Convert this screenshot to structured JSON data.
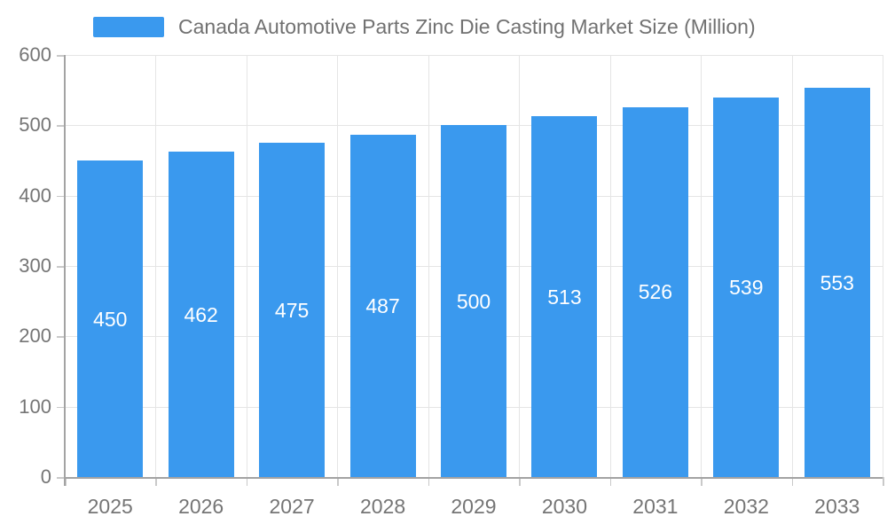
{
  "legend": {
    "label": "Canada Automotive Parts Zinc Die Casting Market Size (Million)"
  },
  "chart_data": {
    "type": "bar",
    "title": "Canada Automotive Parts Zinc Die Casting Market Size (Million)",
    "categories": [
      "2025",
      "2026",
      "2027",
      "2028",
      "2029",
      "2030",
      "2031",
      "2032",
      "2033"
    ],
    "values": [
      450,
      462,
      475,
      487,
      500,
      513,
      526,
      539,
      553
    ],
    "xlabel": "",
    "ylabel": "",
    "ylim": [
      0,
      600
    ],
    "ytick_interval": 100,
    "ytick_labels": [
      "0",
      "100",
      "200",
      "300",
      "400",
      "500",
      "600"
    ],
    "grid": true,
    "legend_position": "top",
    "bar_color": "#3a99ee",
    "bar_label_color": "#ffffff",
    "axis_text_color": "#757575",
    "grid_color": "#e5e5e5",
    "axis_line_color": "#a3a3a3"
  }
}
